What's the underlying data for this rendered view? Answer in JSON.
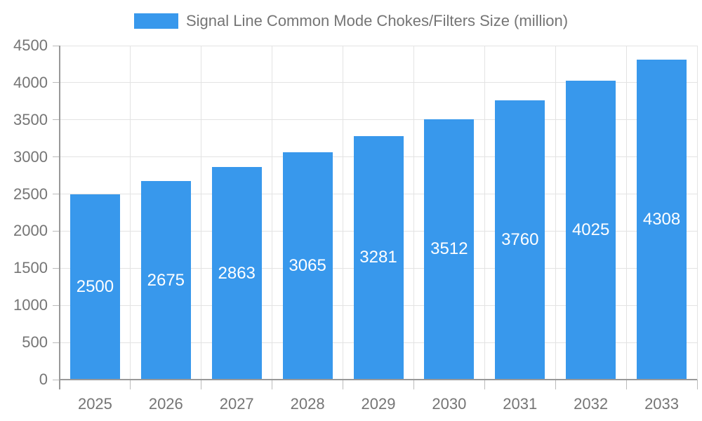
{
  "chart_data": {
    "type": "bar",
    "title": "Signal Line Common Mode Chokes/Filters Size (million)",
    "categories": [
      "2025",
      "2026",
      "2027",
      "2028",
      "2029",
      "2030",
      "2031",
      "2032",
      "2033"
    ],
    "values": [
      2500,
      2675,
      2863,
      3065,
      3281,
      3512,
      3760,
      4025,
      4308
    ],
    "series": [
      {
        "name": "Signal Line Common Mode Chokes/Filters Size (million)",
        "values": [
          2500,
          2675,
          2863,
          3065,
          3281,
          3512,
          3760,
          4025,
          4308
        ]
      }
    ],
    "xlabel": "",
    "ylabel": "",
    "ylim": [
      0,
      4500
    ],
    "ytick_step": 500,
    "yticks": [
      0,
      500,
      1000,
      1500,
      2000,
      2500,
      3000,
      3500,
      4000,
      4500
    ],
    "grid": true,
    "legend_position": "top-center",
    "value_label_position": "inside-center",
    "colors": {
      "bar": "#3898EC",
      "value_label": "#FFFFFF",
      "axis_text": "#757575",
      "axis_line": "#999999",
      "tick_line": "#BBBBBB",
      "gridline": "#E3E3E3",
      "background": "#FFFFFF"
    }
  }
}
